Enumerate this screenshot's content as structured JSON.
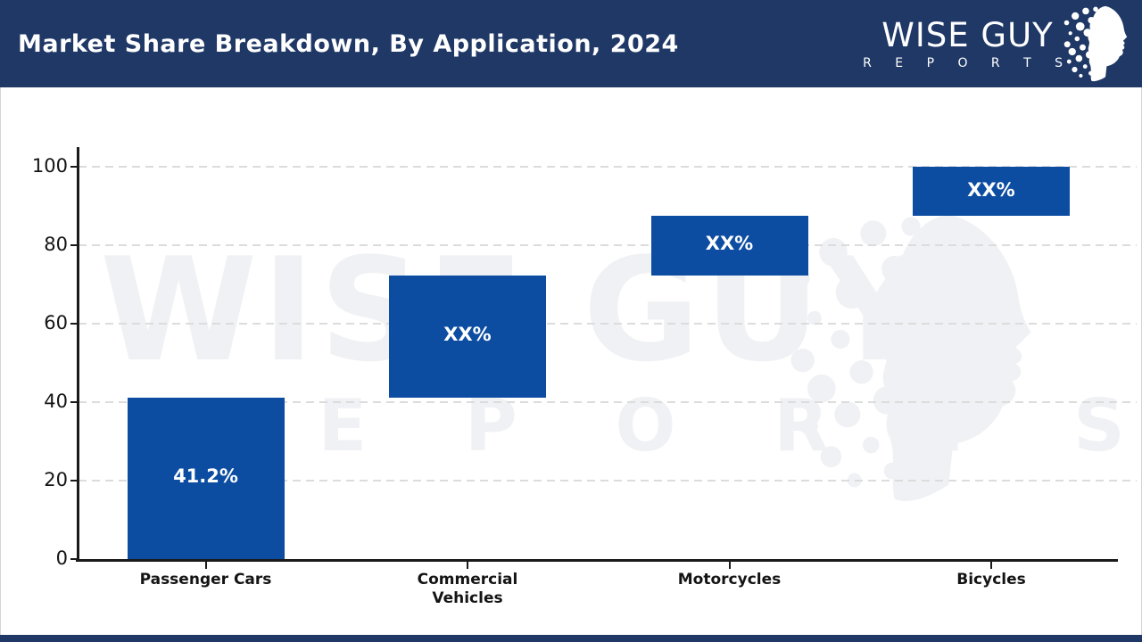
{
  "header": {
    "title": "Market Share Breakdown, By Application, 2024",
    "bg_color": "#1F3866",
    "logo": {
      "line1": "WISE GUY",
      "line2": "R E P O R T S"
    }
  },
  "watermark": {
    "line1": "WISE GUY",
    "line2": "R E P O R T S",
    "color": "#f0f1f4"
  },
  "chart_data": {
    "type": "bar",
    "variant": "waterfall",
    "title": "Market Share Breakdown, By Application, 2024",
    "categories": [
      "Passenger Cars",
      "Commercial Vehicles",
      "Motorcycles",
      "Bicycles"
    ],
    "segments": [
      {
        "category": "Passenger Cars",
        "start": 0,
        "end": 41.2,
        "label": "41.2%"
      },
      {
        "category": "Commercial Vehicles",
        "start": 41.2,
        "end": 72.3,
        "label": "XX%"
      },
      {
        "category": "Motorcycles",
        "start": 72.3,
        "end": 87.5,
        "label": "XX%"
      },
      {
        "category": "Bicycles",
        "start": 87.5,
        "end": 100,
        "label": "XX%"
      }
    ],
    "xlabel": "",
    "ylabel": "",
    "yticks": [
      0,
      20,
      40,
      60,
      80,
      100
    ],
    "ylim": [
      0,
      105
    ],
    "grid": "horizontal-dashed",
    "legend": "none",
    "bar_color": "#0C4DA2",
    "bar_label_color": "#FFFFFF",
    "axis_color": "#1A1A1A",
    "grid_color": "#DCDCDC"
  }
}
